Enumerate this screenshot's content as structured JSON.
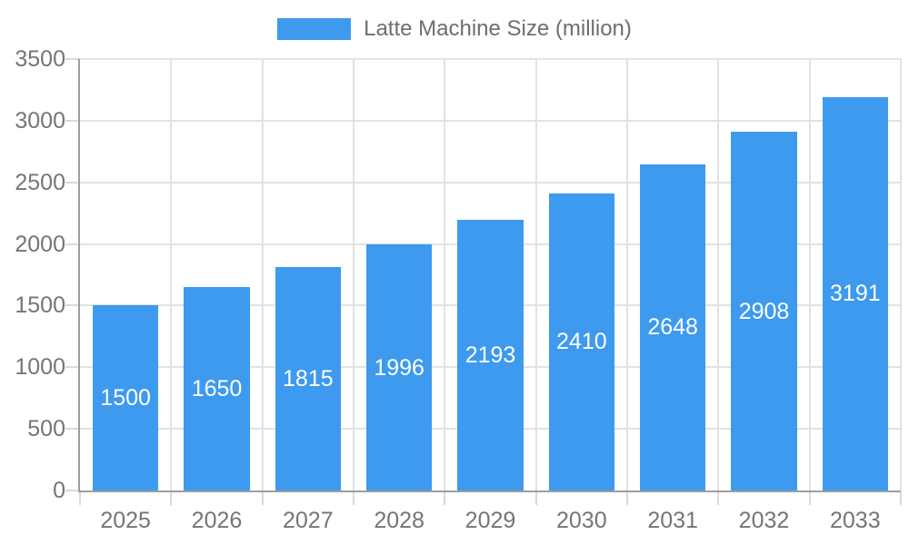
{
  "chart_data": {
    "type": "bar",
    "title": "Latte Machine Size (million)",
    "legend": {
      "label": "Latte Machine Size (million)",
      "position": "top"
    },
    "categories": [
      "2025",
      "2026",
      "2027",
      "2028",
      "2029",
      "2030",
      "2031",
      "2032",
      "2033"
    ],
    "series": [
      {
        "name": "Latte Machine Size (million)",
        "values": [
          1500,
          1650,
          1815,
          1996,
          2193,
          2410,
          2648,
          2908,
          3191
        ]
      }
    ],
    "xlabel": "",
    "ylabel": "",
    "ylim": [
      0,
      3500
    ],
    "yticks": [
      0,
      500,
      1000,
      1500,
      2000,
      2500,
      3000,
      3500
    ],
    "grid": true,
    "value_label_position": "inside-center",
    "colors": {
      "bar": "#3D9AEE",
      "bar_label": "#FFFFFF",
      "grid": "#E2E2E2",
      "tick": "#D9D9D9",
      "axis": "#9E9E9E",
      "tick_text": "#757575",
      "legend_text": "#6E6E6E",
      "background": "#FFFFFF"
    }
  }
}
